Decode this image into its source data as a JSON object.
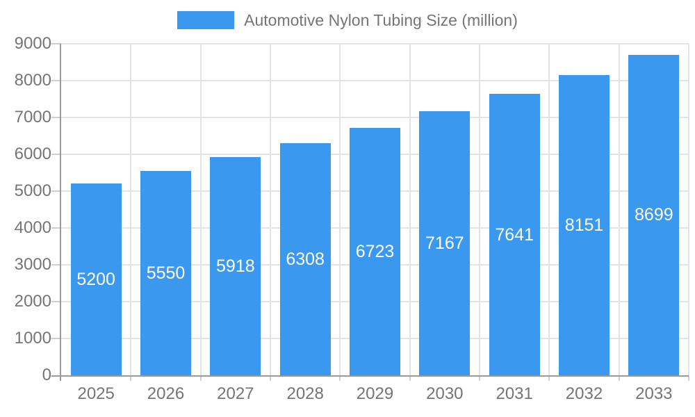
{
  "chart_data": {
    "type": "bar",
    "title": "Automotive Nylon Tubing Size (million)",
    "categories": [
      "2025",
      "2026",
      "2027",
      "2028",
      "2029",
      "2030",
      "2031",
      "2032",
      "2033"
    ],
    "values": [
      5200,
      5550,
      5918,
      6308,
      6723,
      7167,
      7641,
      8151,
      8699
    ],
    "xlabel": "",
    "ylabel": "",
    "ylim": [
      0,
      9000
    ],
    "y_tick_step": 1000,
    "y_tick_labels": [
      "0",
      "1000",
      "2000",
      "3000",
      "4000",
      "5000",
      "6000",
      "7000",
      "8000",
      "9000"
    ],
    "grid": true,
    "legend_position": "top",
    "value_labels": "inside-bar-centered",
    "colors": {
      "bar": "#3A99EF",
      "value_label_text": "#FFFFFF",
      "axis_text": "#757575",
      "grid_line": "#E3E3E3",
      "tick_line": "#CFCFCF",
      "axis_line": "#9A9A9A",
      "background": "#FFFFFF"
    }
  }
}
